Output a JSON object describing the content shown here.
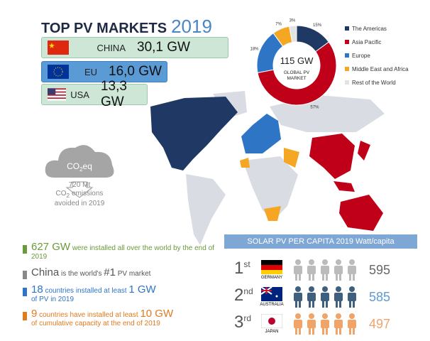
{
  "header": {
    "title": "TOP PV MARKETS",
    "year": "2019"
  },
  "markets": [
    {
      "country": "CHINA",
      "capacity": "30,1 GW"
    },
    {
      "country": "EU",
      "capacity": "16,0 GW"
    },
    {
      "country": "USA",
      "capacity": "13,3 GW"
    }
  ],
  "chart_data": {
    "type": "pie",
    "center_value": "115 GW",
    "center_label": "GLOBAL PV MARKET",
    "categories": [
      "The Americas",
      "Asia Pacific",
      "Europe",
      "Middle East and Africa",
      "Rest of the World"
    ],
    "values": [
      15,
      57,
      18,
      7,
      3
    ],
    "value_labels": [
      "15%",
      "57%",
      "18%",
      "7%",
      "3%"
    ],
    "colors": [
      "#1f3864",
      "#c00018",
      "#2e75c6",
      "#f5a623",
      "#e3e3e3"
    ]
  },
  "co2": {
    "title_pre": "CO",
    "title_sub": "2",
    "title_post": "eq",
    "amount": "720 Mt",
    "line_pre": "CO",
    "line_sub": "2",
    "line_post": "emissions",
    "line3": "avoided in 2019"
  },
  "facts": [
    {
      "highlight": "627 GW",
      "text": "were installed all over the world by the end of 2019"
    },
    {
      "highlight": "China",
      "text": "is the world's",
      "highlight2": "#1",
      "text2": "PV market"
    },
    {
      "highlight": "18",
      "text": "countries installed at least",
      "highlight2": "1 GW",
      "text2": "of PV in 2019"
    },
    {
      "highlight": "9",
      "text": "countries have installed at least",
      "highlight2": "10 GW",
      "text2": "of cumulative capacity at the end of 2019"
    }
  ],
  "per_capita": {
    "title": "SOLAR PV PER CAPITA 2019 Watt/capita",
    "ranks": [
      {
        "num": "1",
        "suffix": "st",
        "country": "GERMANY",
        "value": 595
      },
      {
        "num": "2",
        "suffix": "nd",
        "country": "AUSTRALIA",
        "value": 585
      },
      {
        "num": "3",
        "suffix": "rd",
        "country": "JAPAN",
        "value": 497
      }
    ]
  }
}
